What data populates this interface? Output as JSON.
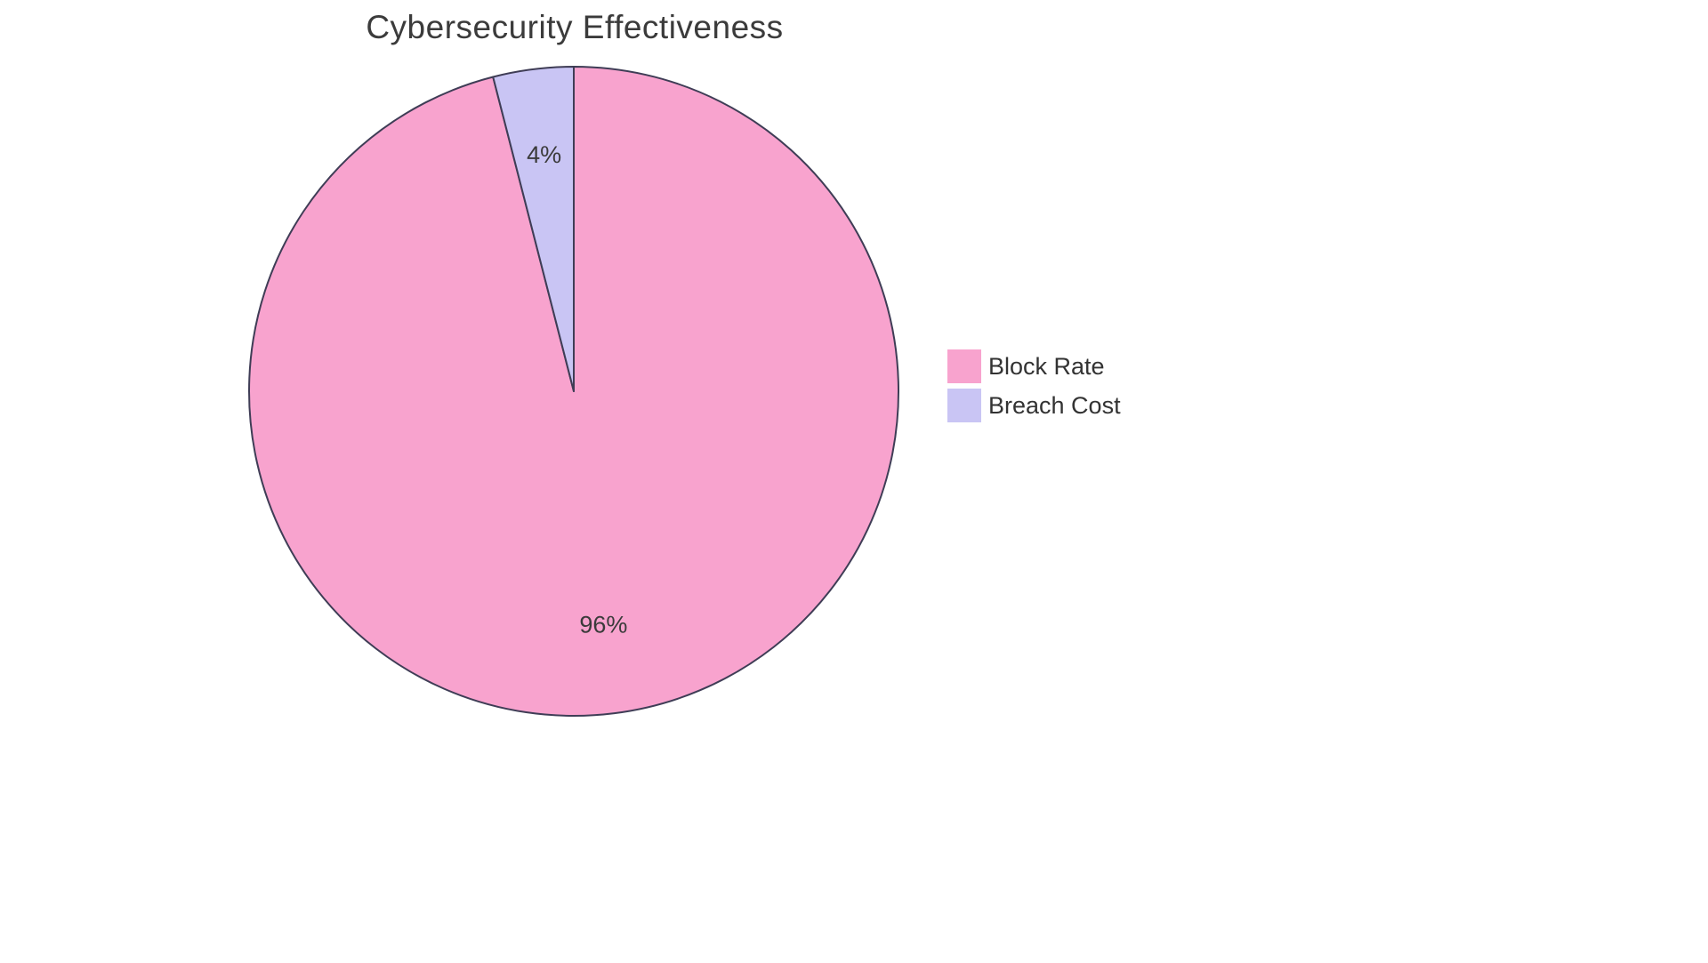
{
  "chart_data": {
    "type": "pie",
    "title": "Cybersecurity Effectiveness",
    "labels": [
      "Block Rate",
      "Breach Cost"
    ],
    "values": [
      96,
      4
    ],
    "value_labels": [
      "96%",
      "4%"
    ],
    "colors": [
      "#F8A3CE",
      "#C9C5F4"
    ],
    "stroke_color": "#3F3D56",
    "text_color": "#3B3B3B",
    "background_color": "#FFFFFF",
    "legend_position": "right",
    "start_angle": "top",
    "direction": "clockwise"
  }
}
